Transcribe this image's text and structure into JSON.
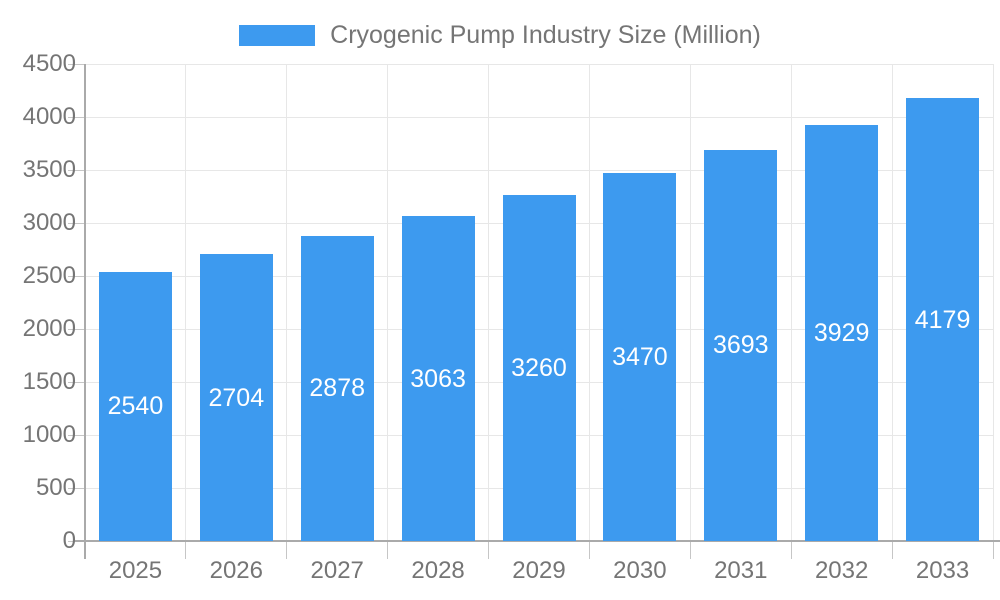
{
  "legend": {
    "label": "Cryogenic Pump Industry Size (Million)"
  },
  "colors": {
    "bar": "#3D9AEF",
    "grid": "#e7e7e7",
    "axis": "#aaaaaa",
    "tick": "#c6c6c6",
    "text": "#757575",
    "bar_label": "#ffffff",
    "background": "#ffffff"
  },
  "chart_data": {
    "type": "bar",
    "title": "Cryogenic Pump Industry Size (Million)",
    "series_name": "Cryogenic Pump Industry Size (Million)",
    "categories": [
      "2025",
      "2026",
      "2027",
      "2028",
      "2029",
      "2030",
      "2031",
      "2032",
      "2033"
    ],
    "values": [
      2540,
      2704,
      2878,
      3063,
      3260,
      3470,
      3693,
      3929,
      4179
    ],
    "xlabel": "",
    "ylabel": "",
    "ylim": [
      0,
      4500
    ],
    "ytick_step": 500,
    "yticks": [
      0,
      500,
      1000,
      1500,
      2000,
      2500,
      3000,
      3500,
      4000,
      4500
    ],
    "grid": true,
    "legend_position": "top",
    "bar_label_position": "center"
  }
}
